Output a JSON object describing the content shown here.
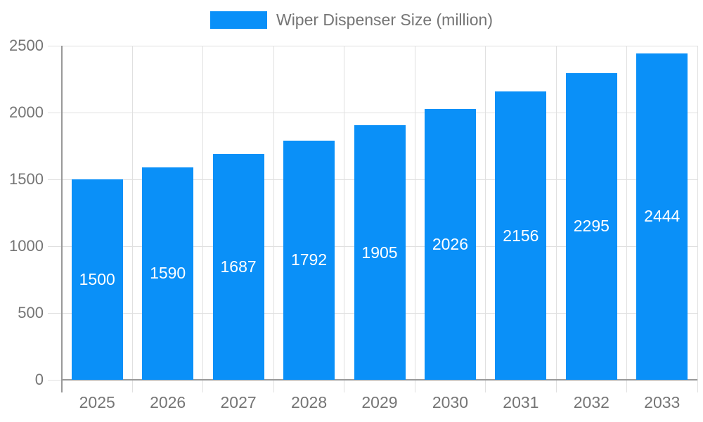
{
  "chart_data": {
    "type": "bar",
    "title": "",
    "legend": {
      "label": "Wiper Dispenser Size (million)",
      "position": "top"
    },
    "categories": [
      "2025",
      "2026",
      "2027",
      "2028",
      "2029",
      "2030",
      "2031",
      "2032",
      "2033"
    ],
    "values": [
      1500,
      1590,
      1687,
      1792,
      1905,
      2026,
      2156,
      2295,
      2444
    ],
    "xlabel": "",
    "ylabel": "",
    "ylim": [
      0,
      2500
    ],
    "yticks": [
      0,
      500,
      1000,
      1500,
      2000,
      2500
    ],
    "grid": true,
    "bar_value_labels_shown": true,
    "colors": {
      "bar": "#0a90f8",
      "bar_value_text": "#ffffff",
      "axis_text": "#757575",
      "legend_text": "#757575",
      "gridline": "#e0e0e0",
      "axis_line": "#999999",
      "background": "#ffffff"
    }
  }
}
